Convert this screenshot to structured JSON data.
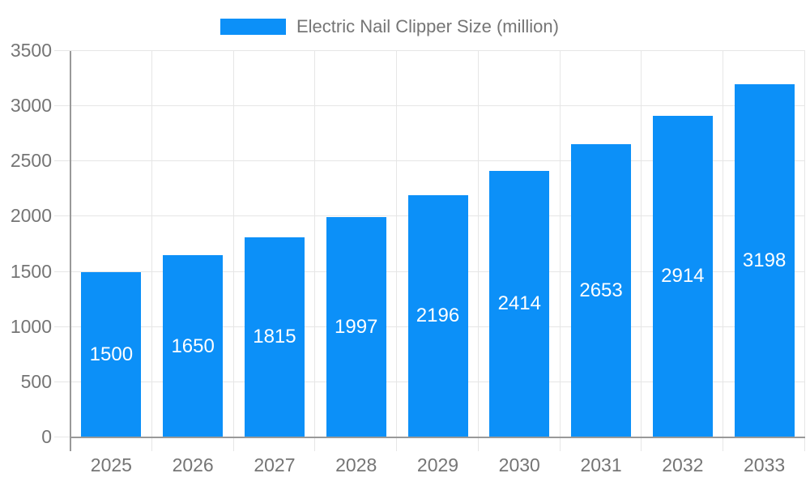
{
  "legend": {
    "label": "Electric Nail Clipper Size (million)"
  },
  "chart_data": {
    "type": "bar",
    "title": "Electric Nail Clipper Size (million)",
    "categories": [
      "2025",
      "2026",
      "2027",
      "2028",
      "2029",
      "2030",
      "2031",
      "2032",
      "2033"
    ],
    "values": [
      1500,
      1650,
      1815,
      1997,
      2196,
      2414,
      2653,
      2914,
      3198
    ],
    "xlabel": "",
    "ylabel": "",
    "ylim": [
      0,
      3500
    ],
    "yticks": [
      0,
      500,
      1000,
      1500,
      2000,
      2500,
      3000,
      3500
    ],
    "grid": true,
    "legend_position": "top-center",
    "colors": {
      "bar": "#0C90F8",
      "grid": "#E6E6E6",
      "axis": "#999999",
      "tick_text": "#757575",
      "bar_label": "#FFFFFF",
      "background": "#FFFFFF"
    }
  }
}
